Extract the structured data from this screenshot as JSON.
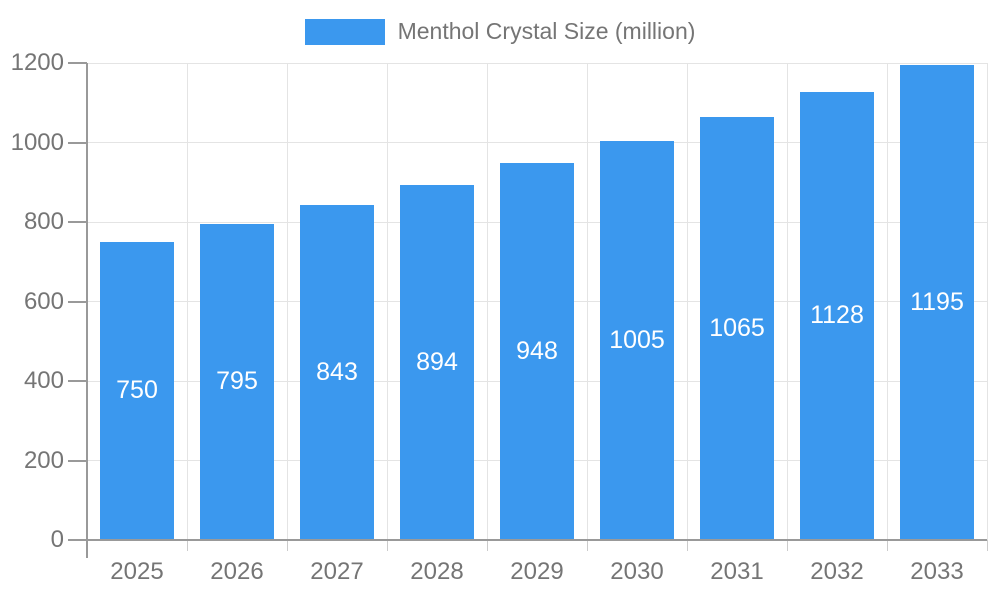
{
  "legend": {
    "label": "Menthol Crystal Size (million)",
    "swatch_color": "#3B98EE"
  },
  "chart_data": {
    "type": "bar",
    "title": "Menthol Crystal Size (million)",
    "series_name": "Menthol Crystal Size (million)",
    "categories": [
      "2025",
      "2026",
      "2027",
      "2028",
      "2029",
      "2030",
      "2031",
      "2032",
      "2033"
    ],
    "values": [
      750,
      795,
      843,
      894,
      948,
      1005,
      1065,
      1128,
      1195
    ],
    "value_labels": [
      "750",
      "795",
      "843",
      "894",
      "948",
      "1005",
      "1065",
      "1128",
      "1195"
    ],
    "xlabel": "",
    "ylabel": "",
    "ylim": [
      0,
      1200
    ],
    "yticks": [
      0,
      200,
      400,
      600,
      800,
      1000,
      1200
    ],
    "grid": true,
    "legend_position": "top-center",
    "colors": {
      "bar": "#3B98EE",
      "value_label": "#FFFFFF",
      "axis_text": "#757575",
      "gridline": "#E4E4E4",
      "axis_line": "#999999",
      "minor_tick": "#CCCCCC",
      "background": "#FFFFFF"
    }
  }
}
